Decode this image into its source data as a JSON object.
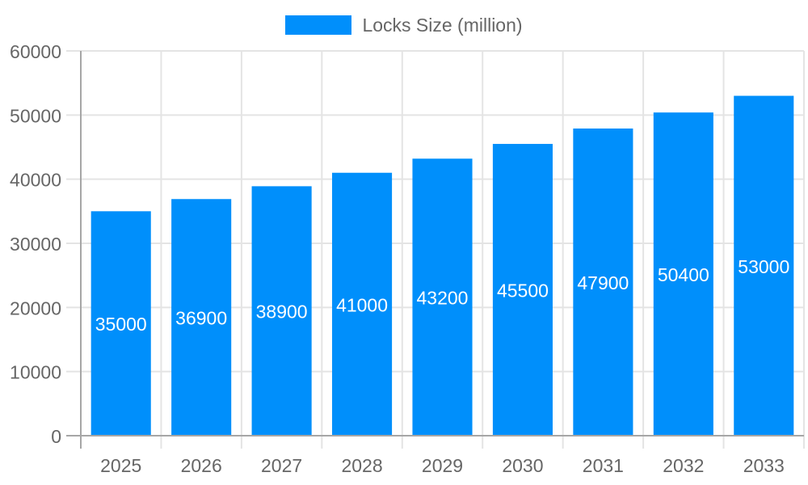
{
  "legend": {
    "items": [
      {
        "label": "Locks Size (million)"
      }
    ],
    "position": "top"
  },
  "colors": {
    "bar": "#008FFB",
    "bar_value_label": "#ffffff",
    "axis_text": "#666666",
    "axis_line": "#a6a6a6",
    "gridline": "#e4e4e4",
    "legend_text": "#666666",
    "background": "#ffffff"
  },
  "chart_data": {
    "type": "bar",
    "categories": [
      "2025",
      "2026",
      "2027",
      "2028",
      "2029",
      "2030",
      "2031",
      "2032",
      "2033"
    ],
    "series": [
      {
        "name": "Locks Size (million)",
        "values": [
          35000,
          36900,
          38900,
          41000,
          43200,
          45500,
          47900,
          50400,
          53000
        ]
      }
    ],
    "ylim": [
      0,
      60000
    ],
    "ytick_step": 10000,
    "yticks": [
      0,
      10000,
      20000,
      30000,
      40000,
      50000,
      60000
    ],
    "grid": true,
    "legend_position": "top",
    "bar_value_labels": "inside-center"
  }
}
